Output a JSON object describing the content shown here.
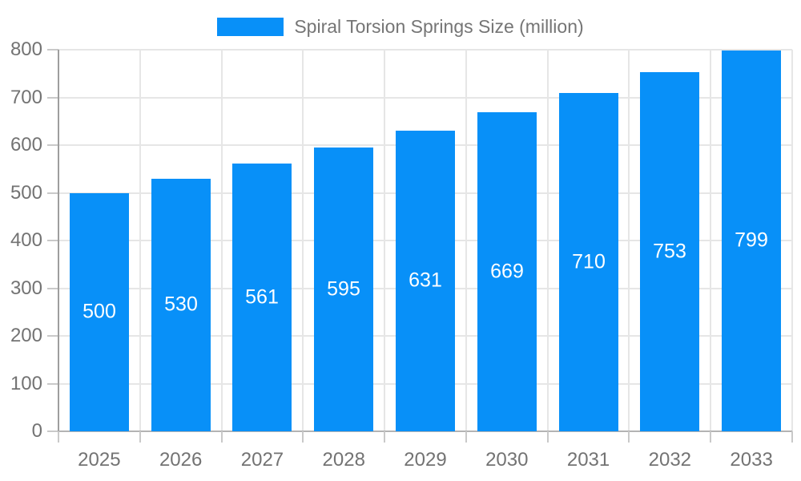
{
  "legend": {
    "label": "Spiral Torsion Springs Size (million)"
  },
  "colors": {
    "bar": "#0890f8",
    "grid": "#e6e6e6",
    "y_axis_line": "#9e9e9e",
    "x_axis_line": "#b3b3b3",
    "tick": "#c9c9c9",
    "axis_label_text": "#737373",
    "bar_label_text": "#ffffff",
    "legend_text": "#757575"
  },
  "chart_data": {
    "type": "bar",
    "title": "Spiral Torsion Springs Size (million)",
    "categories": [
      "2025",
      "2026",
      "2027",
      "2028",
      "2029",
      "2030",
      "2031",
      "2032",
      "2033"
    ],
    "values": [
      500,
      530,
      561,
      595,
      631,
      669,
      710,
      753,
      799
    ],
    "xlabel": "",
    "ylabel": "",
    "ylim": [
      0,
      800
    ],
    "ytick_step": 100,
    "ytick_labels": [
      "0",
      "100",
      "200",
      "300",
      "400",
      "500",
      "600",
      "700",
      "800"
    ],
    "grid": true,
    "legend_position": "top",
    "value_labels": "inside-center",
    "bar_color": "#0890f8"
  }
}
